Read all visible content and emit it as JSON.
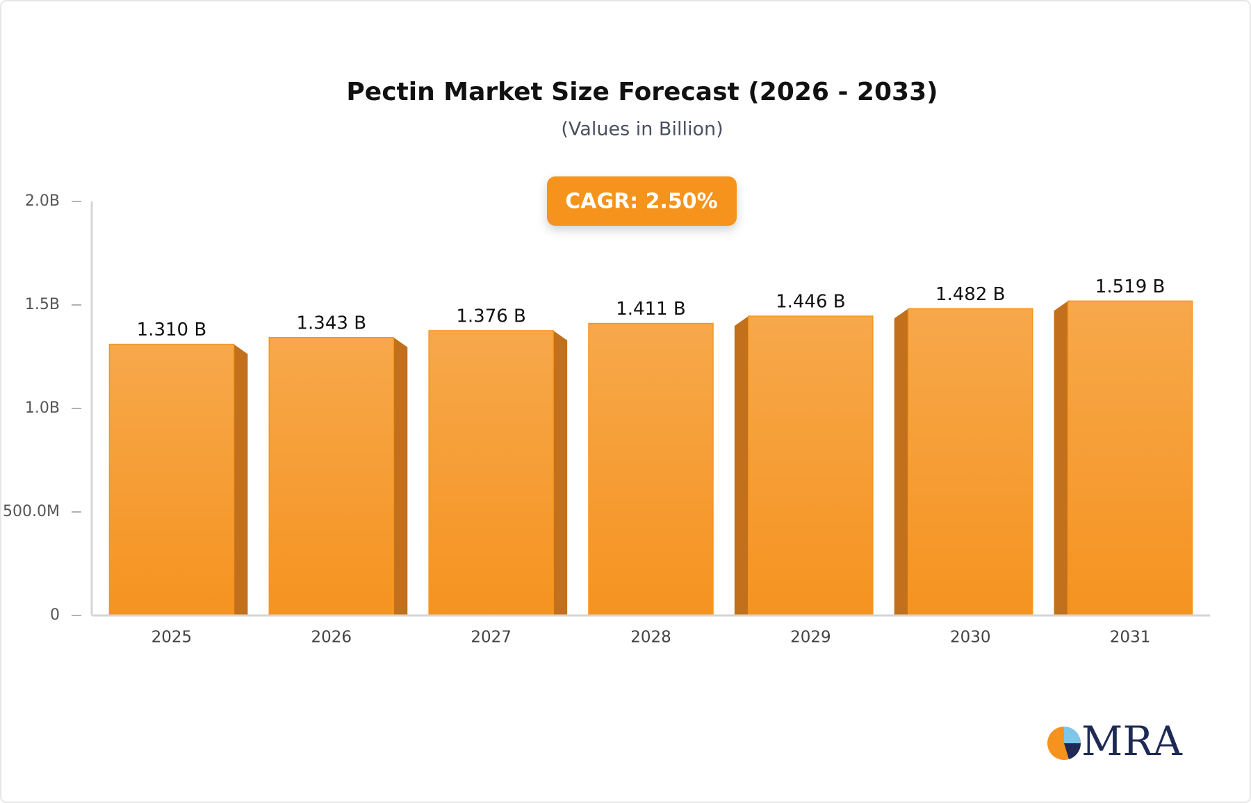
{
  "chart_data": {
    "type": "bar",
    "title": "Pectin Market Size Forecast (2026 - 2033)",
    "subtitle": "(Values in Billion)",
    "annotation": "CAGR: 2.50%",
    "categories": [
      "2025",
      "2026",
      "2027",
      "2028",
      "2029",
      "2030",
      "2031"
    ],
    "values": [
      1.31,
      1.343,
      1.376,
      1.411,
      1.446,
      1.482,
      1.519
    ],
    "value_labels": [
      "1.310 B",
      "1.343 B",
      "1.376 B",
      "1.411 B",
      "1.446 B",
      "1.482 B",
      "1.519 B"
    ],
    "color": "#f5961f",
    "ylim": [
      0,
      2
    ],
    "yticks": [
      0,
      {
        "value": 0.5,
        "label": "500.0M"
      },
      {
        "value": 1,
        "label": "1.0B"
      },
      {
        "value": 1.5,
        "label": "1.5B"
      },
      {
        "value": 2,
        "label": "2.0B"
      }
    ],
    "grid": false
  },
  "logo": "MRA"
}
